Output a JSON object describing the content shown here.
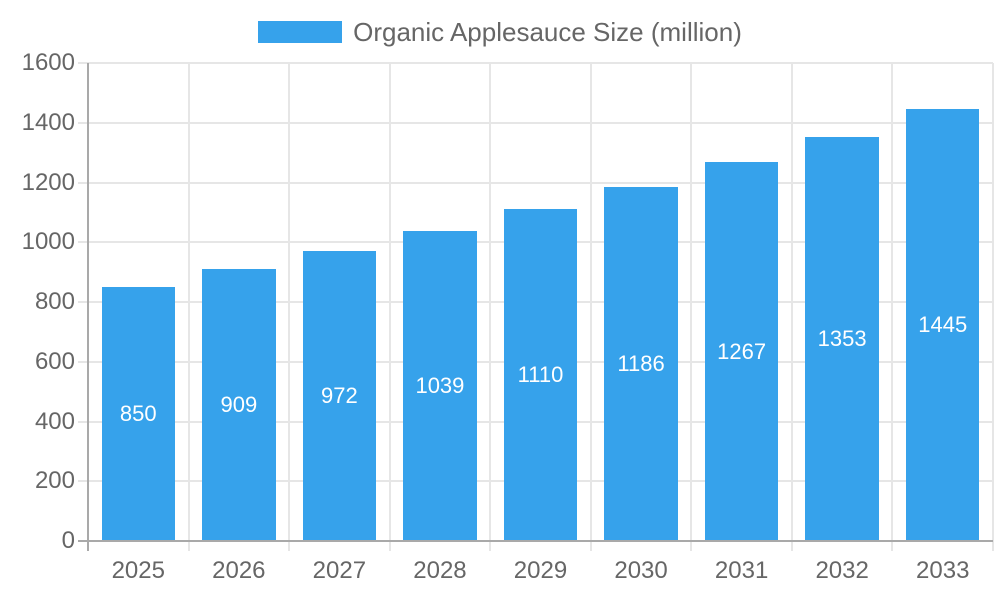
{
  "chart_data": {
    "type": "bar",
    "title": "Organic Applesauce Size (million)",
    "categories": [
      "2025",
      "2026",
      "2027",
      "2028",
      "2029",
      "2030",
      "2031",
      "2032",
      "2033"
    ],
    "values": [
      850,
      909,
      972,
      1039,
      1110,
      1186,
      1267,
      1353,
      1445
    ],
    "series": [
      {
        "name": "Organic Applesauce Size (million)",
        "values": [
          850,
          909,
          972,
          1039,
          1110,
          1186,
          1267,
          1353,
          1445
        ]
      }
    ],
    "xlabel": "",
    "ylabel": "",
    "ylim": [
      0,
      1600
    ],
    "ytick_interval": 200,
    "yticks": [
      0,
      200,
      400,
      600,
      800,
      1000,
      1200,
      1400,
      1600
    ],
    "grid": true,
    "legend_position": "top",
    "bar_color": "#36A2EB",
    "data_label_position": "center"
  },
  "legend": {
    "label": "Organic Applesauce Size (million)"
  },
  "colors": {
    "bar": "#36A2EB",
    "data_label": "#ffffff",
    "axis_text": "#666666",
    "legend_text": "#666666",
    "grid_line": "#e6e6e6",
    "axis_line": "#a9a9a9",
    "background": "#ffffff"
  }
}
